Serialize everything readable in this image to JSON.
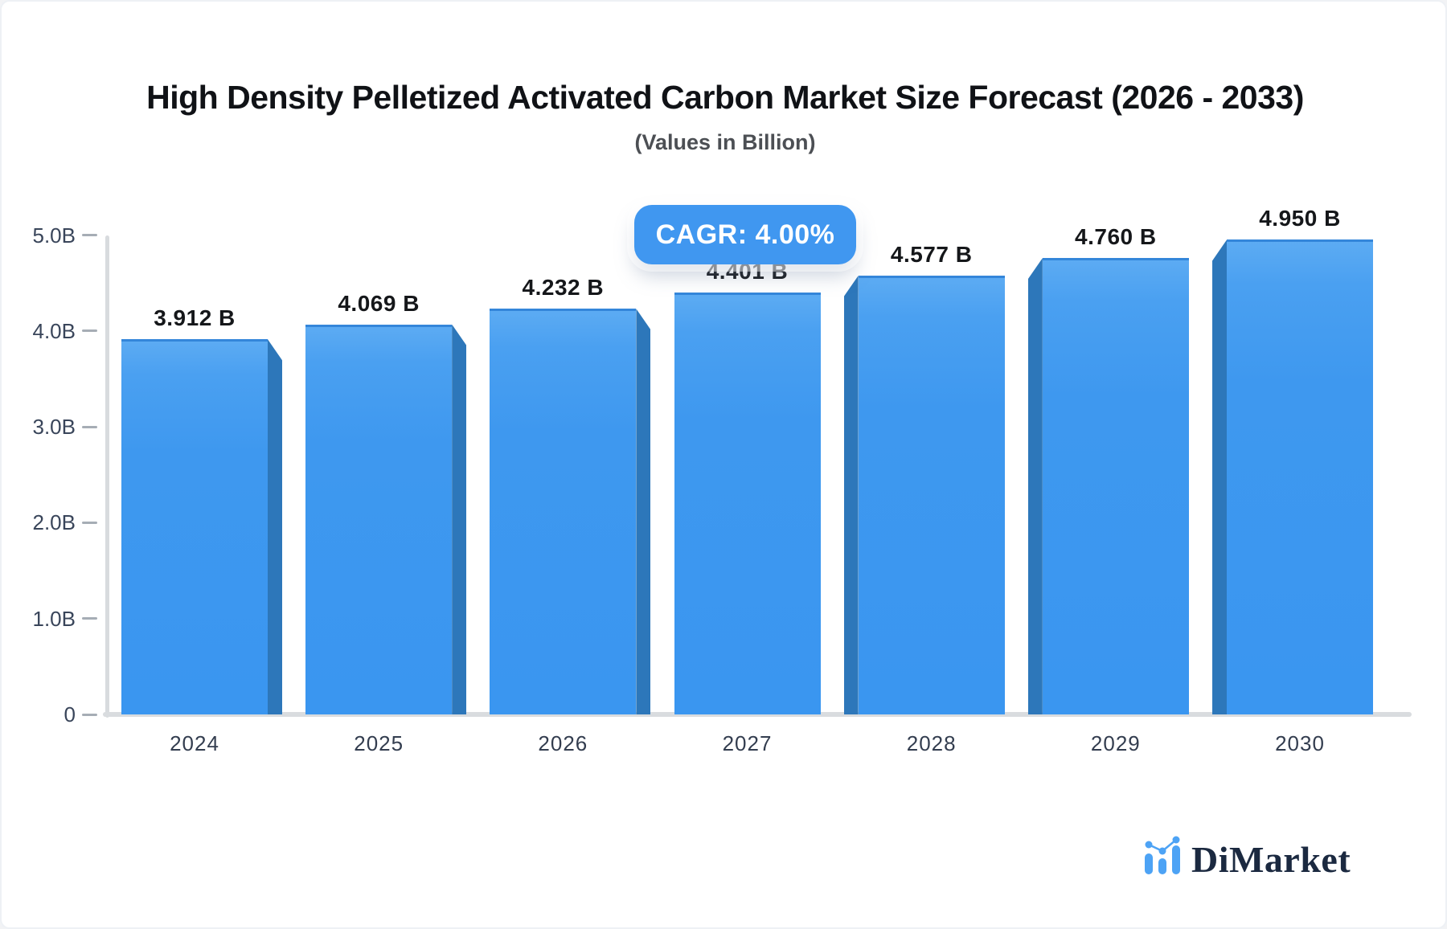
{
  "header": {
    "title": "High Density Pelletized Activated Carbon Market Size Forecast (2026 - 2033)",
    "subtitle": "(Values in Billion)"
  },
  "badge": {
    "label": "CAGR: 4.00%"
  },
  "chart_data": {
    "type": "bar",
    "title": "High Density Pelletized Activated Carbon Market Size Forecast (2026 - 2033)",
    "subtitle": "(Values in Billion)",
    "categories": [
      "2024",
      "2025",
      "2026",
      "2027",
      "2028",
      "2029",
      "2030"
    ],
    "values": [
      3.912,
      4.069,
      4.232,
      4.401,
      4.577,
      4.76,
      4.95
    ],
    "value_labels": [
      "3.912 B",
      "4.069 B",
      "4.232 B",
      "4.401 B",
      "4.577 B",
      "4.760 B",
      "4.950 B"
    ],
    "y_tick_labels": [
      "5.0B",
      "4.0B",
      "3.0B",
      "2.0B",
      "1.0B",
      "0"
    ],
    "y_tick_values": [
      5,
      4,
      3,
      2,
      1,
      0
    ],
    "ylim": [
      0,
      5
    ],
    "xlabel": "",
    "ylabel": "",
    "grid": "off",
    "legend": "none",
    "annotation": "CAGR: 4.00%",
    "colors": {
      "bar_face": "#3d98ef",
      "bar_face_top": "#5cabf3",
      "bar_side": "#2d77ba",
      "badge_bg": "#4097f0",
      "badge_text": "#ffffff",
      "axis_line": "#d9dcdf",
      "tick_text": "#39455a",
      "value_text": "#15171a"
    }
  },
  "logo": {
    "text": "DiMarket",
    "icon": "mini-bar-chart-icon",
    "accent": "#4da3f5",
    "text_color": "#1b2940"
  }
}
